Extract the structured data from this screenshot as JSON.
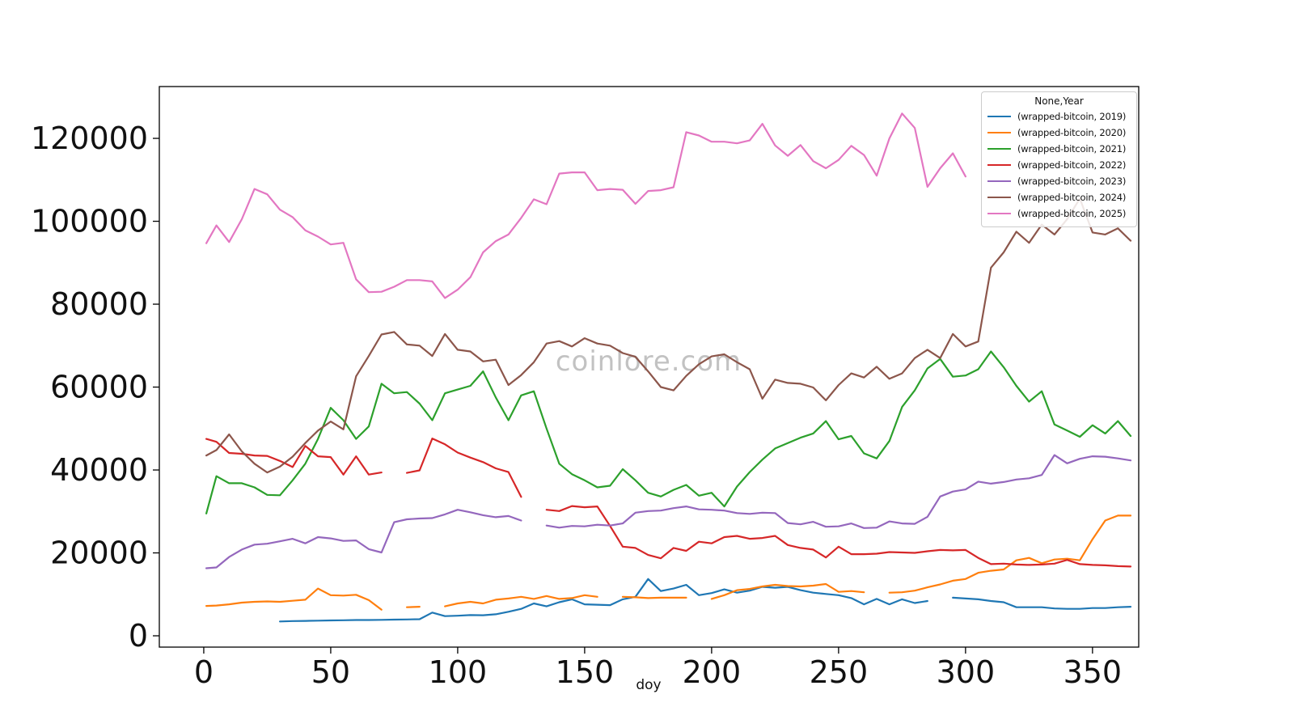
{
  "watermark": "coinlore.com",
  "legend": {
    "title": "None,Year",
    "items": [
      {
        "label": "(wrapped-bitcoin, 2019)",
        "color": "#1f77b4"
      },
      {
        "label": "(wrapped-bitcoin, 2020)",
        "color": "#ff7f0e"
      },
      {
        "label": "(wrapped-bitcoin, 2021)",
        "color": "#2ca02c"
      },
      {
        "label": "(wrapped-bitcoin, 2022)",
        "color": "#d62728"
      },
      {
        "label": "(wrapped-bitcoin, 2023)",
        "color": "#9467bd"
      },
      {
        "label": "(wrapped-bitcoin, 2024)",
        "color": "#8c564b"
      },
      {
        "label": "(wrapped-bitcoin, 2025)",
        "color": "#e377c2"
      }
    ]
  },
  "chart_data": {
    "type": "line",
    "title": "",
    "xlabel": "doy",
    "ylabel": "",
    "xlim": [
      -17.5,
      368.2
    ],
    "ylim": [
      -2730,
      132500
    ],
    "xticks": [
      0,
      50,
      100,
      150,
      200,
      250,
      300,
      350
    ],
    "yticks": [
      0,
      20000,
      40000,
      60000,
      80000,
      100000,
      120000
    ],
    "grid": false,
    "legend_position": "upper right",
    "series": [
      {
        "name": "(wrapped-bitcoin, 2019)",
        "color": "#1f77b4",
        "x": [
          30,
          35,
          40,
          45,
          50,
          55,
          60,
          65,
          70,
          75,
          80,
          85,
          90,
          95,
          100,
          105,
          110,
          115,
          120,
          125,
          130,
          135,
          140,
          145,
          150,
          155,
          160,
          165,
          170,
          175,
          180,
          185,
          190,
          195,
          200,
          205,
          210,
          215,
          220,
          225,
          230,
          235,
          240,
          245,
          250,
          255,
          260,
          265,
          270,
          275,
          280,
          285,
          290,
          295,
          300,
          305,
          310,
          315,
          320,
          325,
          330,
          335,
          340,
          345,
          350,
          355,
          360,
          365
        ],
        "y": [
          3450,
          3550,
          3600,
          3650,
          3700,
          3750,
          3800,
          3800,
          3850,
          3900,
          3950,
          4000,
          5600,
          4750,
          4850,
          5000,
          4950,
          5200,
          5800,
          6500,
          7800,
          7100,
          8100,
          8800,
          7600,
          7500,
          7400,
          8800,
          9400,
          13700,
          10800,
          11400,
          12300,
          9800,
          10300,
          11200,
          10400,
          10900,
          11800,
          11600,
          11800,
          11000,
          10400,
          10100,
          9800,
          9100,
          7600,
          8900,
          7600,
          8800,
          7900,
          8400,
          null,
          9200,
          9000,
          8800,
          8400,
          8100,
          6900,
          6900,
          6900,
          6600,
          6500,
          6500,
          6700,
          6700,
          6900,
          7000
        ]
      },
      {
        "name": "(wrapped-bitcoin, 2020)",
        "color": "#ff7f0e",
        "x": [
          1,
          5,
          10,
          15,
          20,
          25,
          30,
          35,
          40,
          45,
          50,
          55,
          60,
          65,
          70,
          75,
          80,
          85,
          90,
          95,
          100,
          105,
          110,
          115,
          120,
          125,
          130,
          135,
          140,
          145,
          150,
          155,
          160,
          165,
          170,
          175,
          180,
          185,
          190,
          195,
          200,
          205,
          210,
          215,
          220,
          225,
          230,
          235,
          240,
          245,
          250,
          255,
          260,
          265,
          270,
          275,
          280,
          285,
          290,
          295,
          300,
          305,
          310,
          315,
          320,
          325,
          330,
          335,
          340,
          345,
          350,
          355,
          360,
          365
        ],
        "y": [
          7200,
          7300,
          7600,
          8000,
          8200,
          8300,
          8200,
          8450,
          8700,
          11400,
          9800,
          9700,
          9900,
          8600,
          6300,
          null,
          6900,
          7000,
          null,
          7100,
          7800,
          8200,
          7800,
          8700,
          9000,
          9400,
          8900,
          9600,
          8900,
          9100,
          9800,
          9400,
          null,
          9400,
          9300,
          9100,
          9200,
          9200,
          9200,
          null,
          8900,
          9800,
          11000,
          11300,
          11900,
          12300,
          12000,
          11900,
          12100,
          12500,
          10600,
          10800,
          10500,
          null,
          10400,
          10500,
          10900,
          11700,
          12400,
          13300,
          13700,
          15200,
          15700,
          16000,
          18200,
          18800,
          17500,
          18400,
          18600,
          18200,
          23300,
          27800,
          29000,
          29000
        ]
      },
      {
        "name": "(wrapped-bitcoin, 2021)",
        "color": "#2ca02c",
        "x": [
          1,
          5,
          10,
          15,
          20,
          25,
          30,
          35,
          40,
          45,
          50,
          55,
          60,
          65,
          70,
          75,
          80,
          85,
          90,
          95,
          100,
          105,
          110,
          115,
          120,
          125,
          130,
          135,
          140,
          145,
          150,
          155,
          160,
          165,
          170,
          175,
          180,
          185,
          190,
          195,
          200,
          205,
          210,
          215,
          220,
          225,
          230,
          235,
          240,
          245,
          250,
          255,
          260,
          265,
          270,
          275,
          280,
          285,
          290,
          295,
          300,
          305,
          310,
          315,
          320,
          325,
          330,
          335,
          340,
          345,
          350,
          355,
          360,
          365
        ],
        "y": [
          29500,
          38500,
          36800,
          36800,
          35800,
          34000,
          33900,
          37500,
          41500,
          47500,
          55000,
          52000,
          47500,
          50500,
          60800,
          58500,
          58800,
          56000,
          52000,
          58500,
          59400,
          60300,
          63800,
          57500,
          52000,
          58000,
          59000,
          50000,
          41500,
          39000,
          37500,
          35800,
          36200,
          40200,
          37500,
          34500,
          33600,
          35200,
          36400,
          33800,
          34500,
          31200,
          36000,
          39500,
          42500,
          45200,
          46500,
          47800,
          48800,
          51800,
          47400,
          48200,
          44000,
          42800,
          47000,
          55200,
          59200,
          64500,
          66800,
          62500,
          62800,
          64300,
          68600,
          64800,
          60300,
          56500,
          59000,
          51000,
          49500,
          48000,
          50800,
          48800,
          51800,
          48200
        ]
      },
      {
        "name": "(wrapped-bitcoin, 2022)",
        "color": "#d62728",
        "x": [
          1,
          5,
          10,
          15,
          20,
          25,
          30,
          35,
          40,
          45,
          50,
          55,
          60,
          65,
          70,
          75,
          80,
          85,
          90,
          95,
          100,
          105,
          110,
          115,
          120,
          125,
          130,
          135,
          140,
          145,
          150,
          155,
          160,
          165,
          170,
          175,
          180,
          185,
          190,
          195,
          200,
          205,
          210,
          215,
          220,
          225,
          230,
          235,
          240,
          245,
          250,
          255,
          260,
          265,
          270,
          275,
          280,
          285,
          290,
          295,
          300,
          305,
          310,
          315,
          320,
          325,
          330,
          335,
          340,
          345,
          350,
          355,
          360,
          365
        ],
        "y": [
          47500,
          46800,
          44100,
          43900,
          43500,
          43400,
          42200,
          40700,
          45800,
          43300,
          43100,
          38900,
          43300,
          38900,
          39400,
          null,
          39300,
          39900,
          47600,
          46200,
          44200,
          43000,
          41900,
          40400,
          39500,
          33500,
          null,
          30400,
          30100,
          31300,
          31000,
          31200,
          26500,
          21500,
          21200,
          19500,
          18700,
          21200,
          20500,
          22700,
          22300,
          23800,
          24100,
          23400,
          23600,
          24100,
          21900,
          21200,
          20800,
          18900,
          21500,
          19700,
          19700,
          19800,
          20200,
          20100,
          20000,
          20400,
          20700,
          20600,
          20700,
          18800,
          17300,
          17400,
          17200,
          17100,
          17200,
          17400,
          18300,
          17300,
          17100,
          17000,
          16800,
          16700
        ]
      },
      {
        "name": "(wrapped-bitcoin, 2023)",
        "color": "#9467bd",
        "x": [
          1,
          5,
          10,
          15,
          20,
          25,
          30,
          35,
          40,
          45,
          50,
          55,
          60,
          65,
          70,
          75,
          80,
          85,
          90,
          95,
          100,
          105,
          110,
          115,
          120,
          125,
          130,
          135,
          140,
          145,
          150,
          155,
          160,
          165,
          170,
          175,
          180,
          185,
          190,
          195,
          200,
          205,
          210,
          215,
          220,
          225,
          230,
          235,
          240,
          245,
          250,
          255,
          260,
          265,
          270,
          275,
          280,
          285,
          290,
          295,
          300,
          305,
          310,
          315,
          320,
          325,
          330,
          335,
          340,
          345,
          350,
          355,
          360,
          365
        ],
        "y": [
          16300,
          16500,
          19000,
          20800,
          22000,
          22200,
          22800,
          23400,
          22300,
          23800,
          23500,
          22900,
          23000,
          20900,
          20100,
          27400,
          28100,
          28300,
          28400,
          29300,
          30400,
          29800,
          29100,
          28600,
          28900,
          27800,
          null,
          26600,
          26100,
          26500,
          26400,
          26800,
          26600,
          27100,
          29700,
          30100,
          30200,
          30800,
          31200,
          30500,
          30400,
          30200,
          29600,
          29400,
          29700,
          29600,
          27200,
          26900,
          27500,
          26300,
          26400,
          27100,
          26000,
          26100,
          27600,
          27100,
          27000,
          28700,
          33600,
          34800,
          35300,
          37200,
          36700,
          37100,
          37700,
          38000,
          38800,
          43600,
          41600,
          42700,
          43300,
          43200,
          42800,
          42300
        ]
      },
      {
        "name": "(wrapped-bitcoin, 2024)",
        "color": "#8c564b",
        "x": [
          1,
          5,
          10,
          15,
          20,
          25,
          30,
          35,
          40,
          45,
          50,
          55,
          60,
          65,
          70,
          75,
          80,
          85,
          90,
          95,
          100,
          105,
          110,
          115,
          120,
          125,
          130,
          135,
          140,
          145,
          150,
          155,
          160,
          165,
          170,
          175,
          180,
          185,
          190,
          195,
          200,
          205,
          210,
          215,
          220,
          225,
          230,
          235,
          240,
          245,
          250,
          255,
          260,
          265,
          270,
          275,
          280,
          285,
          290,
          295,
          300,
          305,
          310,
          315,
          320,
          325,
          330,
          335,
          340,
          345,
          350,
          355,
          360,
          365
        ],
        "y": [
          43500,
          44800,
          48600,
          44500,
          41500,
          39400,
          40800,
          43200,
          46500,
          49500,
          51700,
          49800,
          62600,
          67500,
          72700,
          73300,
          70300,
          70000,
          67500,
          72800,
          69000,
          68600,
          66200,
          66600,
          60500,
          62900,
          66000,
          70500,
          71100,
          69800,
          71800,
          70500,
          70000,
          68200,
          67300,
          63800,
          60000,
          59200,
          62700,
          65500,
          67400,
          67900,
          66000,
          64300,
          57200,
          61800,
          61000,
          60800,
          59900,
          56800,
          60500,
          63300,
          62300,
          64900,
          62000,
          63300,
          67000,
          69000,
          67000,
          72800,
          69800,
          71000,
          88800,
          92500,
          97500,
          94800,
          99200,
          96800,
          100500,
          105500,
          97300,
          96800,
          98300,
          95300
        ]
      },
      {
        "name": "(wrapped-bitcoin, 2025)",
        "color": "#e377c2",
        "x": [
          1,
          5,
          10,
          15,
          20,
          25,
          30,
          35,
          40,
          45,
          50,
          55,
          60,
          65,
          70,
          75,
          80,
          85,
          90,
          95,
          100,
          105,
          110,
          115,
          120,
          125,
          130,
          135,
          140,
          145,
          150,
          155,
          160,
          165,
          170,
          175,
          180,
          185,
          190,
          195,
          200,
          205,
          210,
          215,
          220,
          225,
          230,
          235,
          240,
          245,
          250,
          255,
          260,
          265,
          270,
          275,
          280,
          285,
          290,
          295,
          300
        ],
        "y": [
          94700,
          99000,
          95000,
          100500,
          107800,
          106500,
          102800,
          101000,
          97800,
          96300,
          94400,
          94800,
          86000,
          82900,
          83000,
          84200,
          85800,
          85800,
          85500,
          81500,
          83500,
          86500,
          92500,
          95200,
          96800,
          100800,
          105300,
          104100,
          111500,
          111800,
          111800,
          107500,
          107800,
          107600,
          104200,
          107300,
          107500,
          108200,
          121500,
          120700,
          119200,
          119200,
          118800,
          119500,
          123500,
          118300,
          115800,
          118400,
          114500,
          112800,
          114800,
          118200,
          116000,
          111000,
          120000,
          126000,
          122500,
          108300,
          112800,
          116400,
          110800
        ]
      }
    ]
  }
}
